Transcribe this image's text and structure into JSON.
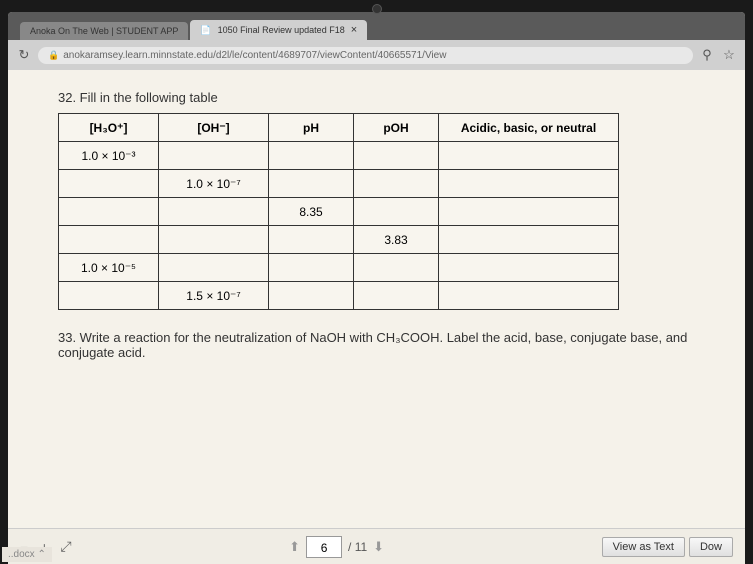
{
  "browser": {
    "tab1_label": "Anoka On The Web | STUDENT APP",
    "tab2_label": "1050 Final Review updated F18",
    "tab2_close": "×",
    "url": "anokaramsey.learn.minnstate.edu/d2l/le/content/4689707/viewContent/40665571/View",
    "reload_icon": "↻",
    "lock_icon": "🔒",
    "search_icon": "⚲",
    "star_icon": "☆"
  },
  "content": {
    "q32_text": "32. Fill in the following table",
    "table": {
      "headers": {
        "h3o": "[H₃O⁺]",
        "oh": "[OH⁻]",
        "ph": "pH",
        "poh": "pOH",
        "abn": "Acidic, basic, or neutral"
      },
      "rows": [
        {
          "h3o": "1.0 × 10⁻³",
          "oh": "",
          "ph": "",
          "poh": "",
          "abn": ""
        },
        {
          "h3o": "",
          "oh": "1.0 × 10⁻⁷",
          "ph": "",
          "poh": "",
          "abn": ""
        },
        {
          "h3o": "",
          "oh": "",
          "ph": "8.35",
          "poh": "",
          "abn": ""
        },
        {
          "h3o": "",
          "oh": "",
          "ph": "",
          "poh": "3.83",
          "abn": ""
        },
        {
          "h3o": "1.0 × 10⁻⁵",
          "oh": "",
          "ph": "",
          "poh": "",
          "abn": ""
        },
        {
          "h3o": "",
          "oh": "1.5 × 10⁻⁷",
          "ph": "",
          "poh": "",
          "abn": ""
        }
      ]
    },
    "q33_text": "33. Write a reaction for the neutralization of NaOH with CH₃COOH.  Label the acid, base, conjugate base, and conjugate acid."
  },
  "footer": {
    "minus": "−",
    "plus": "+",
    "fit": "⤢",
    "up_arrow": "⬆",
    "down_arrow": "⬇",
    "page_current": "6",
    "page_total": "/ 11",
    "view_text": "View as Text",
    "download": "Dow"
  },
  "docx_label": "..docx    ⌃"
}
